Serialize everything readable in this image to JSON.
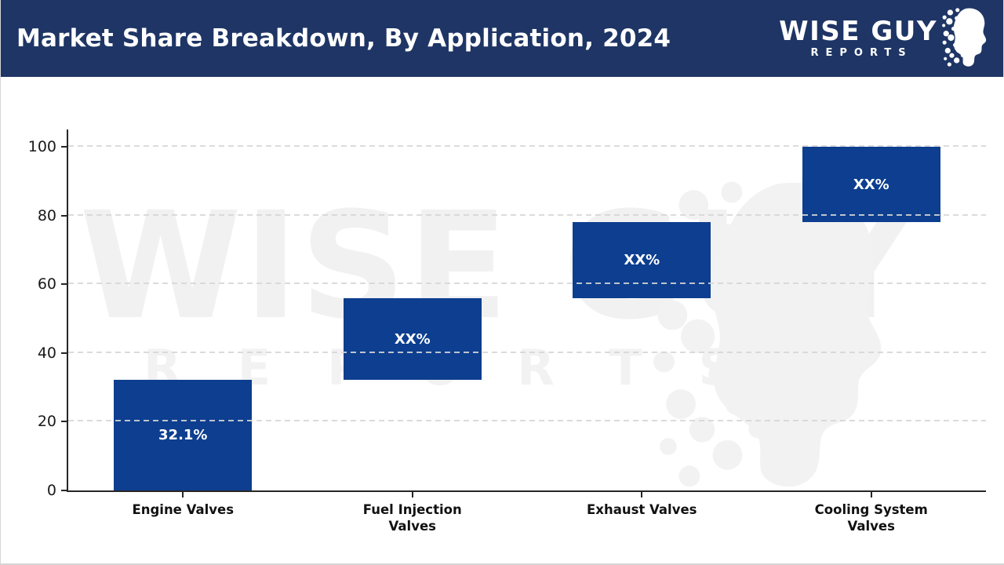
{
  "header": {
    "title": "Market Share Breakdown, By Application, 2024",
    "bg_color": "#1e3565",
    "logo": {
      "wordmark": "WISE GUY",
      "subtext": "REPORTS"
    }
  },
  "watermark": {
    "line1": "WISE GUY",
    "line2": "REPORTS"
  },
  "chart_data": {
    "type": "bar",
    "subtype": "waterfall",
    "title": "Market Share Breakdown, By Application, 2024",
    "categories": [
      "Engine Valves",
      "Fuel Injection\nValves",
      "Exhaust Valves",
      "Cooling System\nValves"
    ],
    "segments": [
      {
        "name": "Engine Valves",
        "start": 0,
        "end": 32.1,
        "label": "32.1%"
      },
      {
        "name": "Fuel Injection Valves",
        "start": 32.1,
        "end": 56,
        "label": "XX%"
      },
      {
        "name": "Exhaust Valves",
        "start": 56,
        "end": 78,
        "label": "XX%"
      },
      {
        "name": "Cooling System Valves",
        "start": 78,
        "end": 100,
        "label": "XX%"
      }
    ],
    "yticks": [
      0,
      20,
      40,
      60,
      80,
      100
    ],
    "ylim": [
      0,
      105
    ],
    "xlabel": "",
    "ylabel": "",
    "bar_color": "#0d3e8f",
    "bar_label_color": "#ffffff",
    "grid": true,
    "grid_style": "dashed",
    "legend": "none"
  }
}
